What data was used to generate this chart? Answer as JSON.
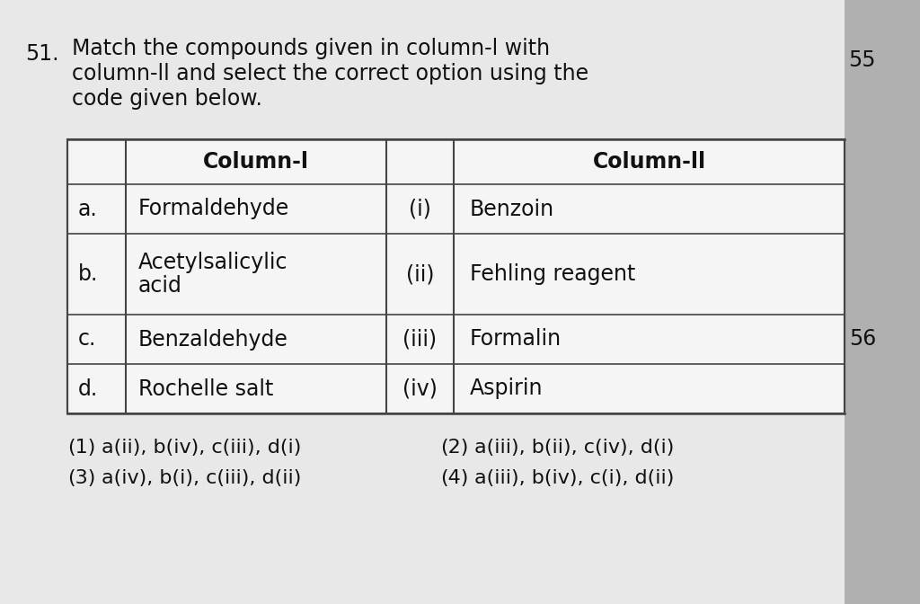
{
  "question_number": "51.",
  "question_lines": [
    "Match the compounds given in column-l with",
    "column-ll and select the correct option using the",
    "code given below."
  ],
  "side_number_top": "55",
  "side_number_mid": "56",
  "col1_header": "Column-l",
  "col2_header": "Column-ll",
  "col1_rows": [
    [
      "a.",
      "Formaldehyde"
    ],
    [
      "b.",
      "Acetylsalicylic\nacid"
    ],
    [
      "c.",
      "Benzaldehyde"
    ],
    [
      "d.",
      "Rochelle salt"
    ]
  ],
  "col2_rows": [
    [
      "(i)",
      "Benzoin"
    ],
    [
      "(ii)",
      "Fehling reagent"
    ],
    [
      "(iii)",
      "Formalin"
    ],
    [
      "(iv)",
      "Aspirin"
    ]
  ],
  "options": [
    [
      "(1)",
      "a(ii), b(iv), c(iii), d(i)"
    ],
    [
      "(2)",
      "a(iii), b(ii), c(iv), d(i)"
    ],
    [
      "(3)",
      "a(iv), b(i), c(iii), d(ii)"
    ],
    [
      "(4)",
      "a(iii), b(iv), c(i), d(ii)"
    ]
  ],
  "bg_color": "#d8d8d8",
  "table_bg": "#f0f0f0",
  "text_color": "#111111",
  "border_color": "#444444",
  "font_size_question": 17,
  "font_size_table": 17,
  "font_size_options": 16,
  "font_size_side": 17
}
